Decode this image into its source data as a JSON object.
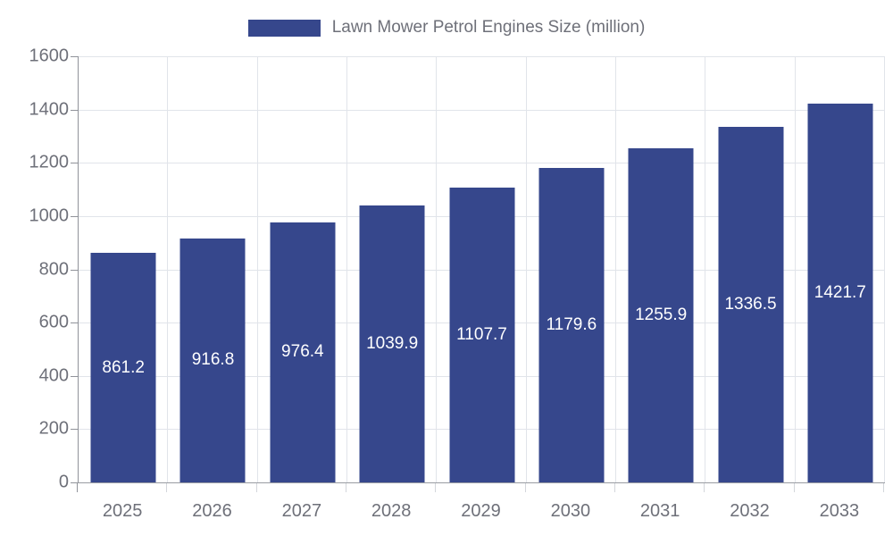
{
  "legend": {
    "label": "Lawn Mower Petrol Engines Size (million)"
  },
  "chart_data": {
    "type": "bar",
    "title": "Lawn Mower Petrol Engines Size (million)",
    "series_name": "Lawn Mower Petrol Engines Size (million)",
    "categories": [
      "2025",
      "2026",
      "2027",
      "2028",
      "2029",
      "2030",
      "2031",
      "2032",
      "2033"
    ],
    "values": [
      861.2,
      916.8,
      976.4,
      1039.9,
      1107.7,
      1179.6,
      1255.9,
      1336.5,
      1421.7
    ],
    "value_decimals": 1,
    "xlabel": "",
    "ylabel": "",
    "ylim": [
      0,
      1600
    ],
    "yticks": [
      0,
      200,
      400,
      600,
      800,
      1000,
      1200,
      1400,
      1600
    ],
    "grid": true,
    "legend_position": "top-center",
    "bar_label_position": "inside-center"
  },
  "colors": {
    "bar": "#36478C",
    "bar_label": "#ffffff",
    "axis_line": "#90939a",
    "gridline": "#e1e4ea",
    "tick_label": "#6E7079",
    "legend_text": "#6E7079",
    "background": "#ffffff"
  }
}
